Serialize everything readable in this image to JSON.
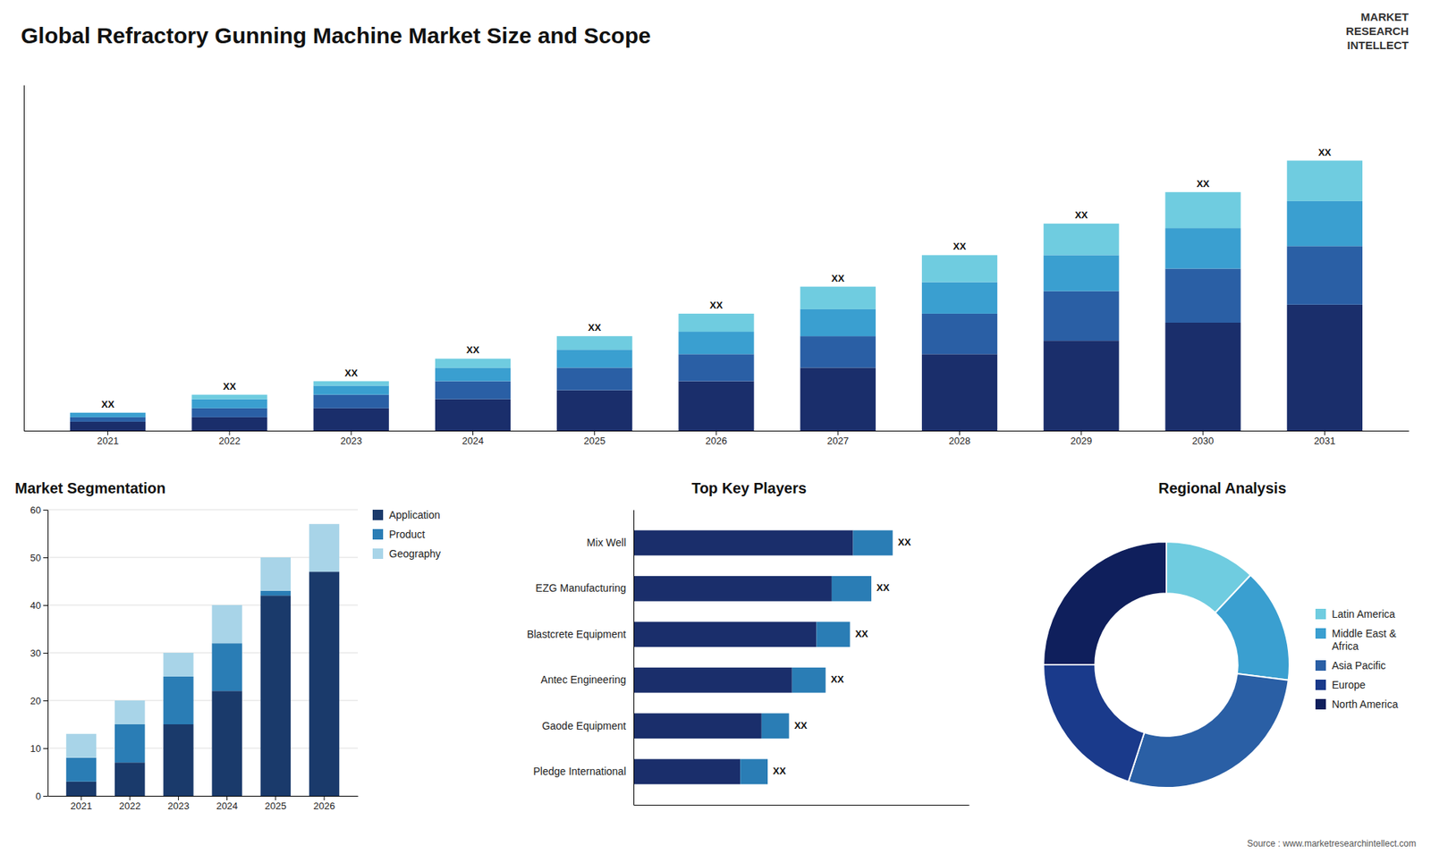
{
  "title": "Global Refractory Gunning Machine Market Size and Scope",
  "annotations": [
    "MARKET\nRESEARCH\nINTELLECT",
    "Source : www.marketresearchintellect.com"
  ],
  "chart_data": [
    {
      "type": "bar",
      "stacked": true,
      "categories": [
        "2021",
        "2022",
        "2023",
        "2024",
        "2025",
        "2026",
        "2027",
        "2028",
        "2029",
        "2030",
        "2031"
      ],
      "series": [
        {
          "color": "#1a2e6b",
          "values": [
            2,
            3,
            5,
            7,
            9,
            11,
            14,
            17,
            20,
            24,
            28
          ]
        },
        {
          "color": "#2a5fa5",
          "values": [
            1,
            2,
            3,
            4,
            5,
            6,
            7,
            9,
            11,
            12,
            13
          ]
        },
        {
          "color": "#3a9fd0",
          "values": [
            1,
            2,
            2,
            3,
            4,
            5,
            6,
            7,
            8,
            9,
            10
          ]
        },
        {
          "color": "#6fcce0",
          "values": [
            0,
            1,
            1,
            2,
            3,
            4,
            5,
            6,
            7,
            8,
            9
          ],
          "value_labels": [
            "XX",
            "XX",
            "XX",
            "XX",
            "XX",
            "XX",
            "XX",
            "XX",
            "XX",
            "XX",
            "XX"
          ]
        }
      ],
      "ylim": [
        0,
        76.8
      ],
      "tick_labels": "x"
    },
    {
      "type": "bar",
      "stacked": true,
      "title": "Market Segmentation",
      "categories": [
        "2021",
        "2022",
        "2023",
        "2024",
        "2025",
        "2026"
      ],
      "series": [
        {
          "name": "Application",
          "color": "#1a3a6b",
          "values": [
            3,
            7,
            15,
            22,
            42,
            47
          ]
        },
        {
          "name": "Product",
          "color": "#2a7db5",
          "values": [
            5,
            8,
            10,
            10,
            1,
            0
          ]
        },
        {
          "name": "Geography",
          "color": "#a8d4e8",
          "values": [
            5,
            5,
            5,
            8,
            7,
            10
          ]
        }
      ],
      "ylim": [
        0,
        60
      ],
      "yticks": [
        0,
        10,
        20,
        30,
        40,
        50,
        60
      ],
      "grid": true,
      "legend": "right"
    },
    {
      "type": "bar",
      "orientation": "horizontal",
      "stacked": true,
      "title": "Top Key Players",
      "categories": [
        "Mix Well",
        "EZG Manufacturing",
        "Blastcrete Equipment",
        "Antec Engineering",
        "Gaode Equipment",
        "Pledge International"
      ],
      "series": [
        {
          "color": "#1a2e6b",
          "values": [
            0.72,
            0.65,
            0.6,
            0.52,
            0.42,
            0.35
          ]
        },
        {
          "color": "#2a7db5",
          "values": [
            0.13,
            0.13,
            0.11,
            0.11,
            0.09,
            0.09
          ],
          "value_labels": [
            "XX",
            "XX",
            "XX",
            "XX",
            "XX",
            "XX"
          ]
        }
      ],
      "xlim": [
        0,
        1.1
      ],
      "tick_labels": "y"
    },
    {
      "type": "pie",
      "title": "Regional Analysis",
      "categories": [
        "Latin America",
        "Middle East &\nAfrica",
        "Asia Pacific",
        "Europe",
        "North America"
      ],
      "values": [
        12,
        15,
        28,
        20,
        25
      ],
      "colors": [
        "#6fcce0",
        "#3a9fd0",
        "#2a5fa5",
        "#1a3a8b",
        "#0f1f5c"
      ],
      "legend": "right"
    }
  ]
}
